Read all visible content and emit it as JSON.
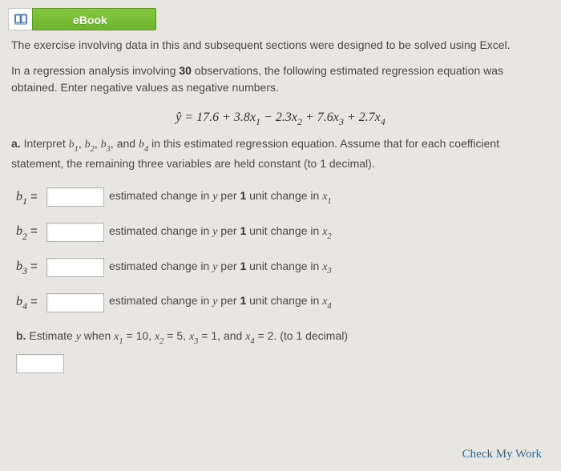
{
  "topbar": {
    "ebook_label": "eBook"
  },
  "intro": {
    "line1": "The exercise involving data in this and subsequent sections were designed to be solved using Excel.",
    "line2_a": "In a regression analysis involving ",
    "line2_obs": "30",
    "line2_b": " observations, the following estimated regression equation was obtained. Enter negative values as negative numbers."
  },
  "equation": {
    "text": "ŷ = 17.6 + 3.8x₁ − 2.3x₂ + 7.6x₃ + 2.7x₄"
  },
  "part_a": {
    "label": "a.",
    "prefix": " Interpret ",
    "mid": " in this estimated regression equation. Assume that for each coefficient statement, the remaining three variables are held constant (to 1 decimal).",
    "coeffs": [
      {
        "sym": "b",
        "sub": "1",
        "desc_a": "estimated change in ",
        "desc_mid": " per ",
        "unit": "1",
        "desc_b": " unit change in ",
        "xvar": "x",
        "xsub": "1"
      },
      {
        "sym": "b",
        "sub": "2",
        "desc_a": "estimated change in ",
        "desc_mid": " per ",
        "unit": "1",
        "desc_b": " unit change in ",
        "xvar": "x",
        "xsub": "2"
      },
      {
        "sym": "b",
        "sub": "3",
        "desc_a": "estimated change in ",
        "desc_mid": " per ",
        "unit": "1",
        "desc_b": " unit change in ",
        "xvar": "x",
        "xsub": "3"
      },
      {
        "sym": "b",
        "sub": "4",
        "desc_a": "estimated change in ",
        "desc_mid": " per ",
        "unit": "1",
        "desc_b": " unit change in ",
        "xvar": "x",
        "xsub": "4"
      }
    ]
  },
  "part_b": {
    "label": "b.",
    "prefix": " Estimate ",
    "when": " when ",
    "vals": "x₁ = 10, x₂ = 5, x₃ = 1,",
    "and": " and ",
    "last": "x₄ = 2",
    "suffix": ". (to 1 decimal)"
  },
  "footer": {
    "check": "Check My Work"
  },
  "y_var": "y"
}
